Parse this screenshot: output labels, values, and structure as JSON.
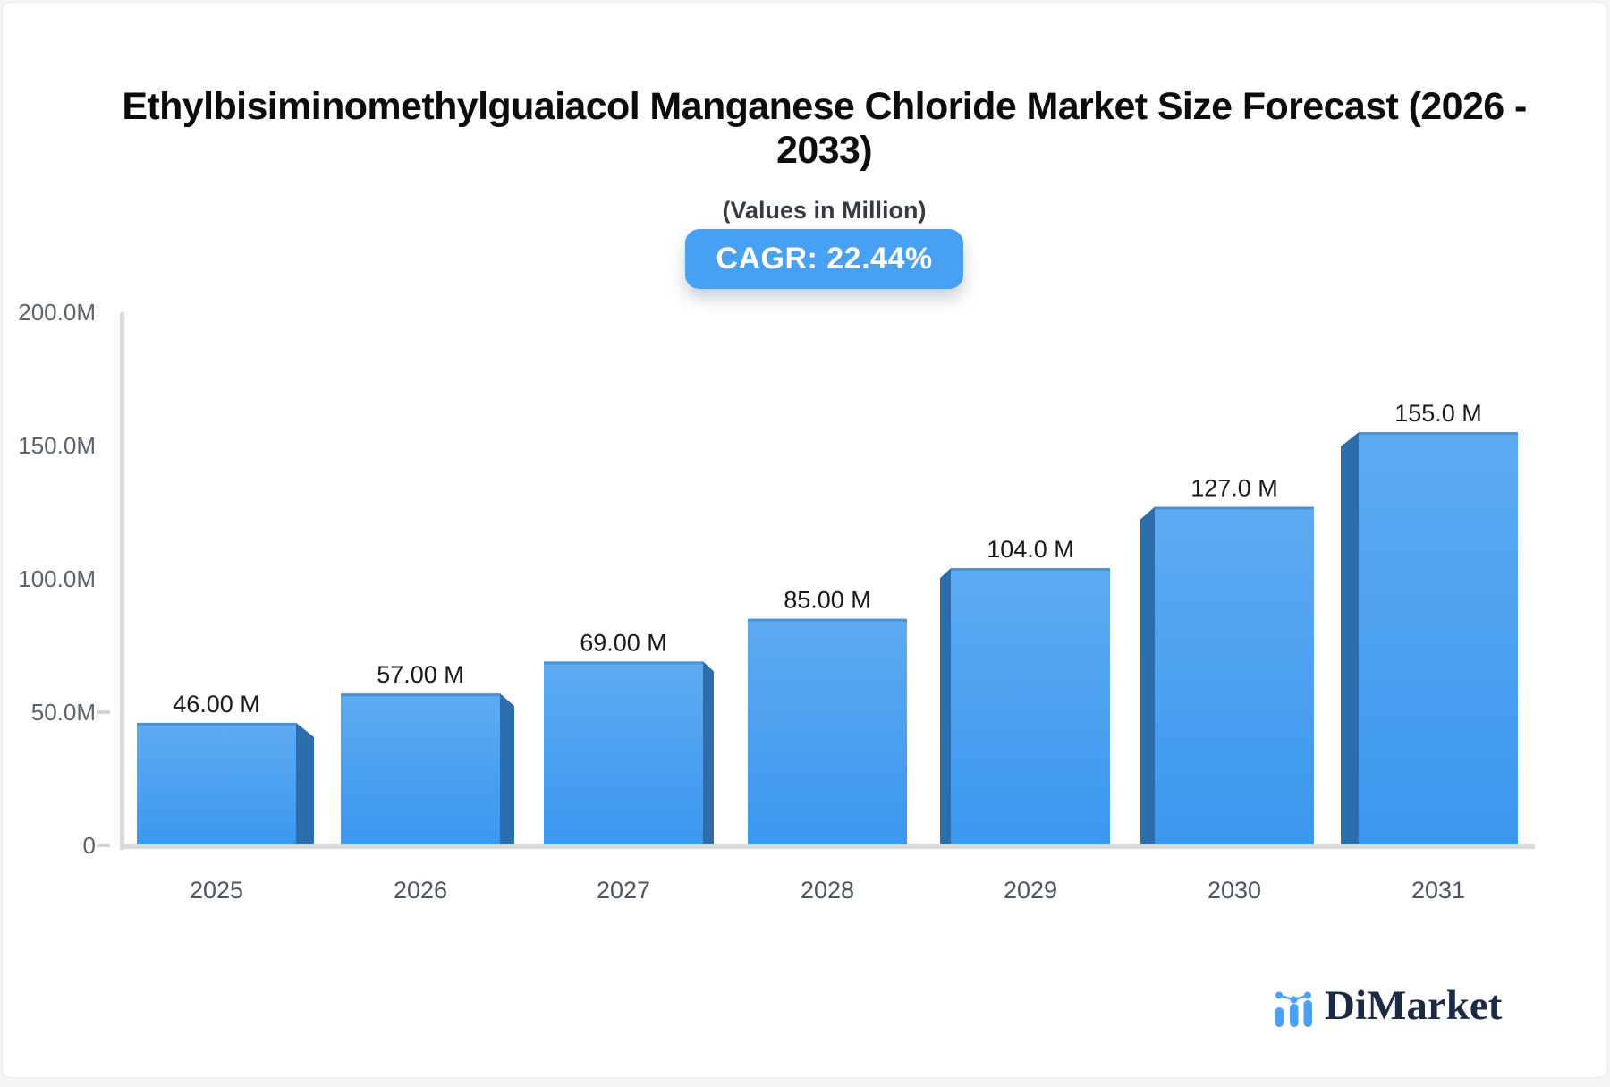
{
  "header": {
    "title_lines": [
      "Ethylbisiminomethylguaiacol Manganese Chloride Market Size Forecast (2026 -",
      "2033)"
    ],
    "subtitle": "(Values in Million)",
    "cagr_label": "CAGR: 22.44%",
    "badge_color": "#47a0f2"
  },
  "chart_data": {
    "type": "bar",
    "title": "Ethylbisiminomethylguaiacol Manganese Chloride Market Size Forecast (2026 - 2033)",
    "subtitle": "(Values in Million)",
    "categories": [
      "2025",
      "2026",
      "2027",
      "2028",
      "2029",
      "2030",
      "2031"
    ],
    "values": [
      46,
      57,
      69,
      85,
      104,
      127,
      155
    ],
    "value_labels": [
      "46.00 M",
      "57.00 M",
      "69.00 M",
      "85.00 M",
      "104.0 M",
      "127.0 M",
      "155.0 M"
    ],
    "unit": "Million",
    "ylim": [
      0,
      200
    ],
    "y_tick_values": [
      0,
      50,
      100,
      150,
      200
    ],
    "y_tick_labels": [
      "0",
      "50.0M",
      "100.0M",
      "150.0M",
      "200.0M"
    ],
    "grid": "off",
    "legend": "none",
    "bar_color_top": "#5dabf1",
    "bar_color_bottom": "#3b97f0",
    "bar_side_color": "#2d6dab",
    "bar_top_edge_color": "#4189d2",
    "axis_color": "#d8dade"
  },
  "footer": {
    "brand": "DiMarket",
    "logo_color": "#4aa2f6",
    "text_color": "#1b2a45"
  }
}
